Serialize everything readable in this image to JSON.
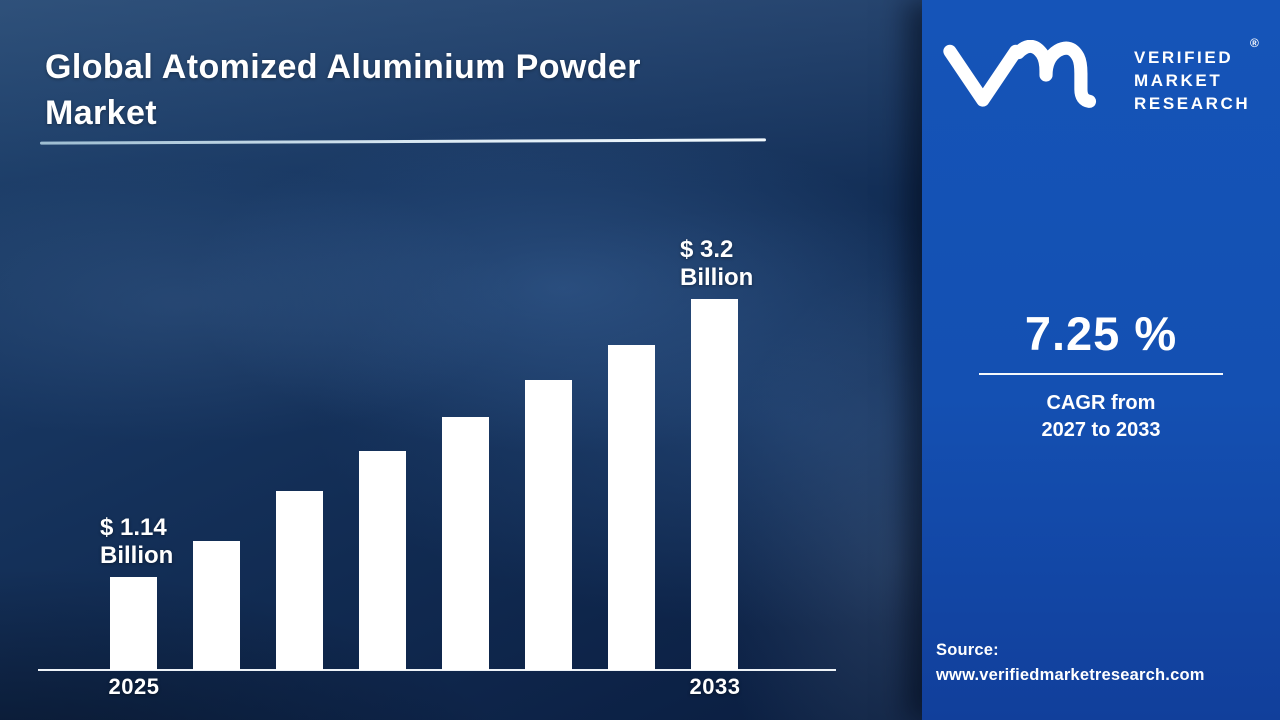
{
  "header": {
    "title_line1": "Global Atomized Aluminium Powder",
    "title_line2": "Market"
  },
  "brand": {
    "logo": "vmr-monogram",
    "lines": [
      "VERIFIED",
      "MARKET",
      "RESEARCH"
    ],
    "registered_mark": "®"
  },
  "stats": {
    "cagr_value": "7.25 %",
    "caption_line1": "CAGR from",
    "caption_line2": "2027 to 2033"
  },
  "source": {
    "label": "Source:",
    "url": "www.verifiedmarketresearch.com"
  },
  "colors": {
    "panel_blue": "#1450b2",
    "background_navy": "#0e2449",
    "bar_white": "#ffffff",
    "axis_line": "#eef3f8"
  },
  "chart_data": {
    "type": "bar",
    "title": "Global Atomized Aluminium Powder Market",
    "unit": "USD Billion",
    "categories": [
      "2025",
      "",
      "",
      "",
      "",
      "",
      "",
      "2033"
    ],
    "values": [
      1.14,
      1.39,
      1.77,
      2.08,
      2.33,
      2.61,
      2.87,
      3.2
    ],
    "values_estimated_between_endpoints": true,
    "bar_height_fractions": [
      0.251,
      0.348,
      0.483,
      0.59,
      0.682,
      0.782,
      0.876,
      1.0
    ],
    "first_bar_label_line1": "$ 1.14",
    "first_bar_label_line2": "Billion",
    "last_bar_label_line1": "$ 3.2",
    "last_bar_label_line2": "Billion",
    "x_first_label": "2025",
    "x_last_label": "2033",
    "ylim": [
      0,
      3.5
    ],
    "grid": false,
    "legend": "none",
    "bar_color": "#ffffff"
  }
}
